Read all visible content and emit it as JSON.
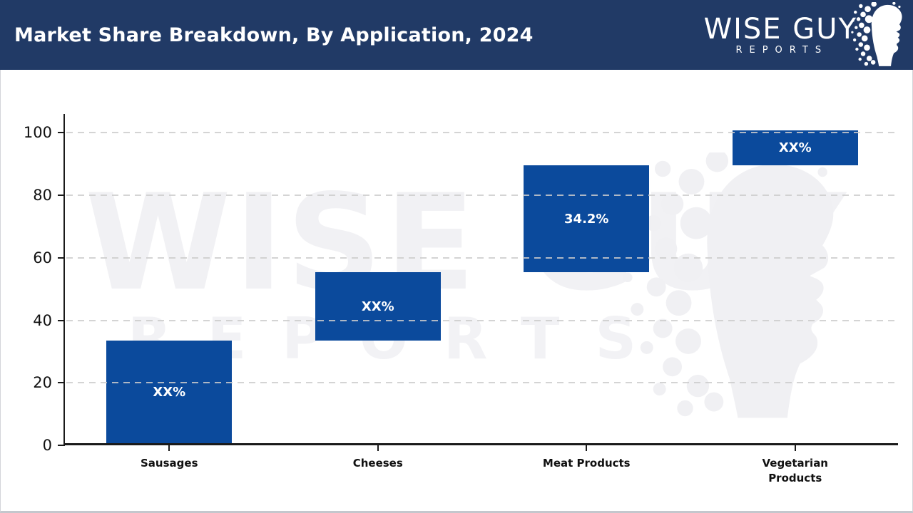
{
  "header": {
    "title": "Market Share Breakdown, By Application, 2024",
    "logo": {
      "line1": "WISE GUY",
      "line2": "REPORTS"
    }
  },
  "watermark": {
    "line1": "WISE GUY",
    "line2": "REPORTS"
  },
  "colors": {
    "header_bg": "#213a66",
    "bar": "#0b4a9c",
    "bar_label": "#ffffff",
    "gridline": "#cccccc",
    "axis": "#1a1a1a",
    "watermark": "#f1f1f4"
  },
  "chart_data": {
    "type": "bar",
    "subtype": "waterfall",
    "title": "Market Share Breakdown, By Application, 2024",
    "categories": [
      "Sausages",
      "Cheeses",
      "Meat Products",
      "Vegetarian Products"
    ],
    "bars": [
      {
        "category": "Sausages",
        "start": 0,
        "end": 32.8,
        "value_label": "XX%"
      },
      {
        "category": "Cheeses",
        "start": 32.8,
        "end": 54.7,
        "value_label": "XX%"
      },
      {
        "category": "Meat Products",
        "start": 54.7,
        "end": 88.9,
        "value_label": "34.2%"
      },
      {
        "category": "Vegetarian Products",
        "start": 88.9,
        "end": 100,
        "value_label": "XX%"
      }
    ],
    "yticks": [
      0,
      20,
      40,
      60,
      80,
      100
    ],
    "ylim": [
      0,
      106
    ],
    "xlabel": "",
    "ylabel": "",
    "grid": "horizontal-dashed-over-bars",
    "legend": "none"
  }
}
